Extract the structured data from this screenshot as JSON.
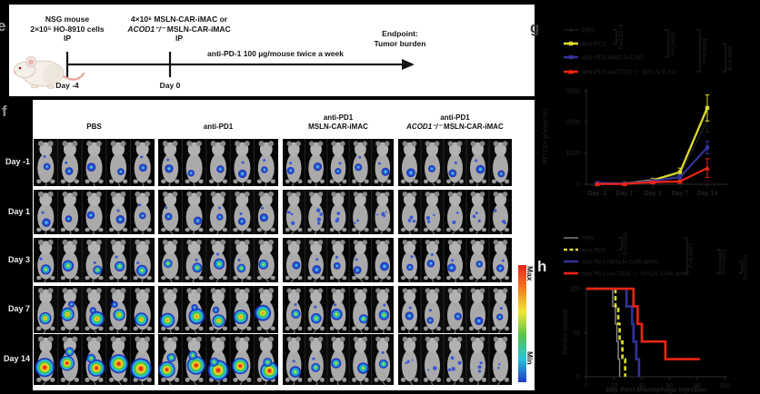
{
  "figure": {
    "letters": {
      "e": "e",
      "f": "f",
      "g": "g",
      "h": "h"
    }
  },
  "schematic": {
    "inj1_l1": "NSG mouse",
    "inj1_l2": "2×10⁵ HO-8910 cells",
    "inj1_l3": "IP",
    "inj2_l1": "4×10⁶ MSLN-CAR-iMAC or",
    "inj2_l2_gene": "ACOD1⁻/⁻",
    "inj2_l2_rest": " MSLN-CAR-iMAC",
    "inj2_l3": "IP",
    "treatment": "anti-PD-1 100 µg/mouse twice a week",
    "endpoint_l1": "Endpoint:",
    "endpoint_l2": "Tumor burden",
    "tick1": "Day -4",
    "tick2": "Day 0"
  },
  "imaging": {
    "days": [
      "Day -1",
      "Day 1",
      "Day 3",
      "Day 7",
      "Day 14"
    ],
    "mice_per_cell": 5,
    "groups": [
      {
        "header_lines": [
          [
            {
              "text": "PBS"
            }
          ]
        ],
        "signal_by_day": [
          2,
          2,
          3,
          4,
          5
        ]
      },
      {
        "header_lines": [
          [
            {
              "text": "anti-PD1"
            }
          ]
        ],
        "signal_by_day": [
          2,
          2,
          3,
          4,
          5
        ]
      },
      {
        "header_lines": [
          [
            {
              "text": "anti-PD1"
            }
          ],
          [
            {
              "text": "MSLN-CAR-iMAC"
            }
          ]
        ],
        "signal_by_day": [
          2,
          1,
          2,
          3,
          3
        ]
      },
      {
        "header_lines": [
          [
            {
              "text": "anti-PD1"
            }
          ],
          [
            {
              "text": "ACOD1⁻/⁻",
              "italic": true
            },
            {
              "text": " MSLN-CAR-iMAC"
            }
          ]
        ],
        "signal_by_day": [
          2,
          1,
          2,
          2,
          1
        ]
      }
    ],
    "colorbar": {
      "max": "Max",
      "min": "Min",
      "gradient": [
        "#e8231a",
        "#f57d1f",
        "#f0e832",
        "#58c24a",
        "#27c6d8",
        "#2438c7"
      ]
    }
  },
  "chart_data": [
    {
      "id": "tumor_burden",
      "type": "line",
      "title": "",
      "x_categories": [
        "Day -1",
        "Day 1",
        "Day 3",
        "Day 7",
        "Day 14"
      ],
      "ylabel": "RFI (10⁶ p/s/cm²/sr)",
      "ylim": [
        0,
        3000
      ],
      "yticks": [
        0,
        1000,
        2000,
        3000
      ],
      "grid": false,
      "legend_position": "top-left",
      "series": [
        {
          "name": "PBS",
          "color": "#1e1e1e",
          "marker": "plus",
          "values": [
            15,
            30,
            160,
            300,
            2050
          ],
          "errors": [
            10,
            15,
            60,
            100,
            380
          ]
        },
        {
          "name": "anti-PD1",
          "color": "#d9d92e",
          "marker": "square",
          "values": [
            15,
            25,
            130,
            390,
            2450
          ],
          "errors": [
            8,
            12,
            50,
            130,
            420
          ]
        },
        {
          "name": "anti-PD1+MSLN-CAR",
          "color": "#32329b",
          "marker": "square",
          "values": [
            40,
            25,
            110,
            230,
            1180
          ],
          "errors": [
            20,
            10,
            40,
            80,
            200
          ]
        },
        {
          "name": "anti-PD1+ACOD1⁻/⁻ MSLN-CAR",
          "color": "#ee2414",
          "marker": "triangle",
          "values": [
            12,
            10,
            70,
            90,
            520
          ],
          "errors": [
            8,
            6,
            30,
            40,
            300
          ]
        }
      ],
      "comparisons": [
        {
          "label": "P=0.0078",
          "rows": [
            0,
            1
          ]
        },
        {
          "label": "P<0.0001",
          "rows": [
            0,
            2
          ]
        },
        {
          "label": "P<0.0001",
          "rows": [
            0,
            3
          ]
        },
        {
          "label": "P=0.0001",
          "rows": [
            1,
            3
          ]
        }
      ]
    },
    {
      "id": "survival",
      "type": "line",
      "subtype": "kaplan-meier",
      "xlabel": "Day Post Macrophage Injection",
      "ylabel": "Percent survival",
      "xlim": [
        0,
        100
      ],
      "xticks": [
        0,
        20,
        40,
        60,
        80,
        100
      ],
      "yticks": [
        0,
        50,
        100
      ],
      "series": [
        {
          "name": "PBS",
          "color": "#8a8a8a",
          "dash": false,
          "steps": [
            [
              0,
              100
            ],
            [
              19,
              100
            ],
            [
              19,
              80
            ],
            [
              21,
              80
            ],
            [
              21,
              60
            ],
            [
              22,
              60
            ],
            [
              22,
              40
            ],
            [
              23,
              40
            ],
            [
              23,
              20
            ],
            [
              24,
              20
            ],
            [
              24,
              0
            ]
          ]
        },
        {
          "name": "anti-PD1",
          "color": "#d9d92e",
          "dash": true,
          "steps": [
            [
              0,
              100
            ],
            [
              21,
              100
            ],
            [
              21,
              80
            ],
            [
              23,
              80
            ],
            [
              23,
              60
            ],
            [
              24,
              60
            ],
            [
              24,
              40
            ],
            [
              26,
              40
            ],
            [
              26,
              20
            ],
            [
              28,
              20
            ],
            [
              28,
              0
            ]
          ]
        },
        {
          "name": "anti-PD1+MSLN-CAR-iMAC",
          "color": "#32329b",
          "dash": false,
          "steps": [
            [
              0,
              100
            ],
            [
              29,
              100
            ],
            [
              29,
              80
            ],
            [
              33,
              80
            ],
            [
              33,
              60
            ],
            [
              34,
              60
            ],
            [
              34,
              40
            ],
            [
              36,
              40
            ],
            [
              36,
              20
            ],
            [
              38,
              20
            ],
            [
              38,
              0
            ]
          ]
        },
        {
          "name": "anti-PD1+ACOD1⁻/⁻ MSLN-CAR-iMAC",
          "color": "#ee2414",
          "dash": false,
          "steps": [
            [
              0,
              100
            ],
            [
              34,
              100
            ],
            [
              34,
              80
            ],
            [
              37,
              80
            ],
            [
              37,
              60
            ],
            [
              40,
              60
            ],
            [
              40,
              40
            ],
            [
              57,
              40
            ],
            [
              57,
              20
            ],
            [
              82,
              20
            ]
          ]
        }
      ],
      "comparisons": [
        {
          "label": "P=0.008",
          "rows": [
            0,
            1
          ]
        },
        {
          "label": "P=0.0027",
          "rows": [
            0,
            3
          ]
        },
        {
          "label": "P=0.0021",
          "rows": [
            1,
            3
          ]
        },
        {
          "label": "P=0.0256",
          "rows": [
            2,
            3
          ]
        }
      ]
    }
  ]
}
